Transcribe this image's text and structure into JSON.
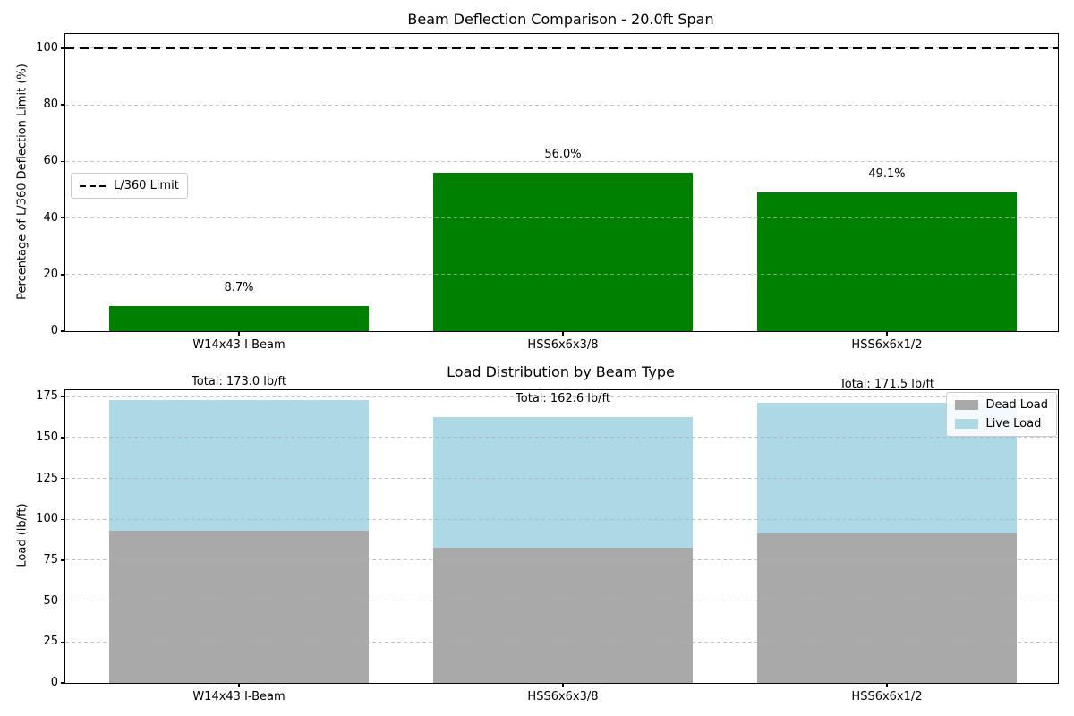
{
  "figure": {
    "background": "#ffffff"
  },
  "chart_data": [
    {
      "type": "bar",
      "title": "Beam Deflection Comparison - 20.0ft Span",
      "ylabel": "Percentage of L/360 Deflection Limit (%)",
      "xlabel": "",
      "categories": [
        "W14x43 I-Beam",
        "HSS6x6x3/8",
        "HSS6x6x1/2"
      ],
      "values": [
        8.7,
        56.0,
        49.1
      ],
      "bar_labels": [
        "8.7%",
        "56.0%",
        "49.1%"
      ],
      "bar_color": "#008000",
      "yticks": [
        0,
        20,
        40,
        60,
        80,
        100
      ],
      "ylim": [
        0,
        105
      ],
      "grid": true,
      "legend_position": "center-left",
      "reference_line": {
        "value": 100,
        "label": "L/360 Limit",
        "color": "#000000",
        "style": "dashed"
      },
      "legend": {
        "entries": [
          {
            "label": "L/360 Limit",
            "swatch": "dashed-line",
            "color": "#000000"
          }
        ]
      }
    },
    {
      "type": "stacked-bar",
      "title": "Load Distribution by Beam Type",
      "ylabel": "Load (lb/ft)",
      "xlabel": "",
      "categories": [
        "W14x43 I-Beam",
        "HSS6x6x3/8",
        "HSS6x6x1/2"
      ],
      "series": [
        {
          "name": "Dead Load",
          "color": "#a9a9a9",
          "values": [
            93.0,
            82.6,
            91.5
          ]
        },
        {
          "name": "Live Load",
          "color": "#add8e6",
          "values": [
            80.0,
            80.0,
            80.0
          ]
        }
      ],
      "totals": [
        173.0,
        162.6,
        171.5
      ],
      "total_labels": [
        "Total: 173.0 lb/ft",
        "Total: 162.6 lb/ft",
        "Total: 171.5 lb/ft"
      ],
      "yticks": [
        0,
        25,
        50,
        75,
        100,
        125,
        150,
        175
      ],
      "ylim": [
        0,
        179
      ],
      "grid": true,
      "legend_position": "upper-right",
      "legend": {
        "entries": [
          {
            "label": "Dead Load",
            "swatch": "rect",
            "color": "#a9a9a9"
          },
          {
            "label": "Live Load",
            "swatch": "rect",
            "color": "#add8e6"
          }
        ]
      }
    }
  ],
  "colors": {
    "bar_green": "#008000",
    "dead_load_gray": "#a9a9a9",
    "live_load_blue": "#add8e6",
    "grid": "#b0b0b0",
    "reference_line": "#000000",
    "background": "#ffffff"
  }
}
